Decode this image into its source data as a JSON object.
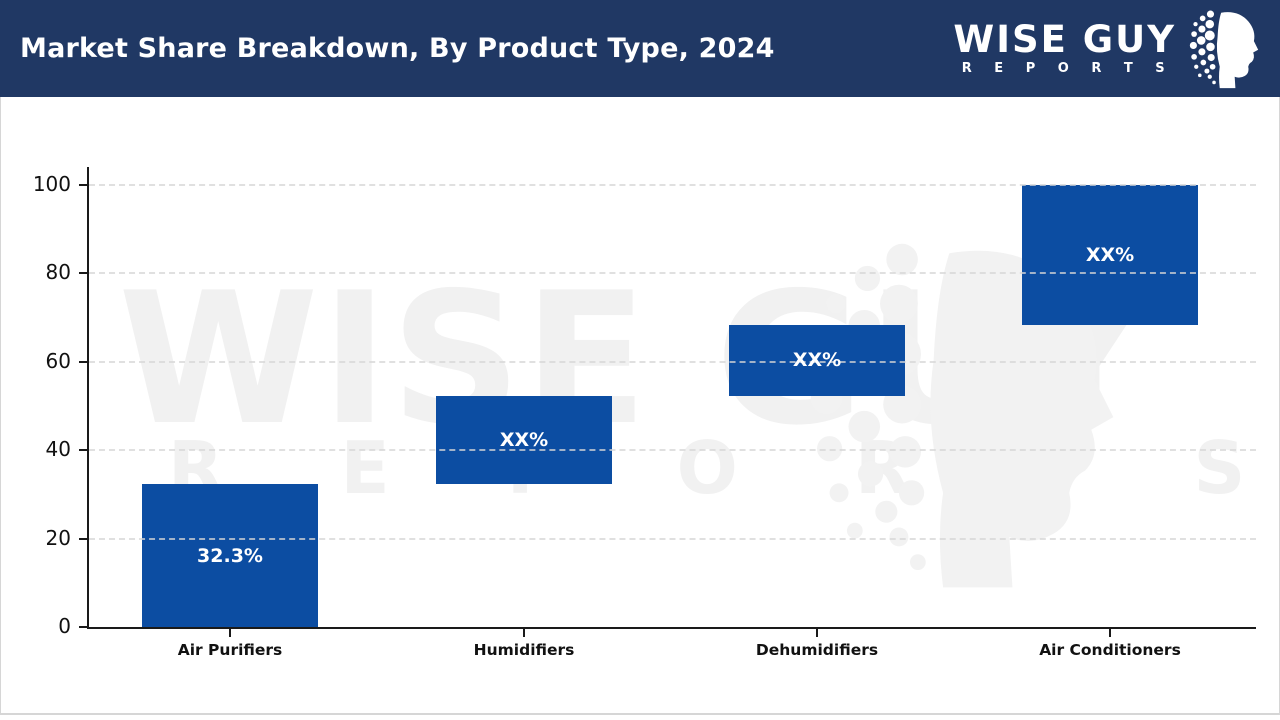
{
  "header": {
    "title": "Market Share Breakdown, By Product Type, 2024",
    "logo_line1": "WISE GUY",
    "logo_line2": "R E P O R T S"
  },
  "watermark": {
    "line1": "WISE GUY",
    "line2": "R E P O R T S"
  },
  "chart_data": {
    "type": "bar",
    "subtype": "waterfall",
    "title": "Market Share Breakdown, By Product Type, 2024",
    "categories": [
      "Air Purifiers",
      "Humidifiers",
      "Dehumidifiers",
      "Air Conditioners"
    ],
    "segments": [
      {
        "category": "Air Purifiers",
        "start": 0,
        "end": 32.3,
        "label": "32.3%"
      },
      {
        "category": "Humidifiers",
        "start": 32.3,
        "end": 52.3,
        "label": "XX%"
      },
      {
        "category": "Dehumidifiers",
        "start": 52.3,
        "end": 68.3,
        "label": "XX%"
      },
      {
        "category": "Air Conditioners",
        "start": 68.3,
        "end": 100,
        "label": "XX%"
      }
    ],
    "y_ticks": [
      0,
      20,
      40,
      60,
      80,
      100
    ],
    "ylim": [
      0,
      104
    ],
    "xlabel": "",
    "ylabel": "",
    "grid": "horizontal-dashed",
    "legend": "none",
    "bar_color": "#0C4DA2",
    "bar_label_color": "#FFFFFF"
  },
  "colors": {
    "header_bg": "#203864",
    "bar": "#0C4DA2",
    "grid": "#D6D6D6",
    "axis": "#1A1A1A",
    "watermark": "#F1F1F1"
  }
}
